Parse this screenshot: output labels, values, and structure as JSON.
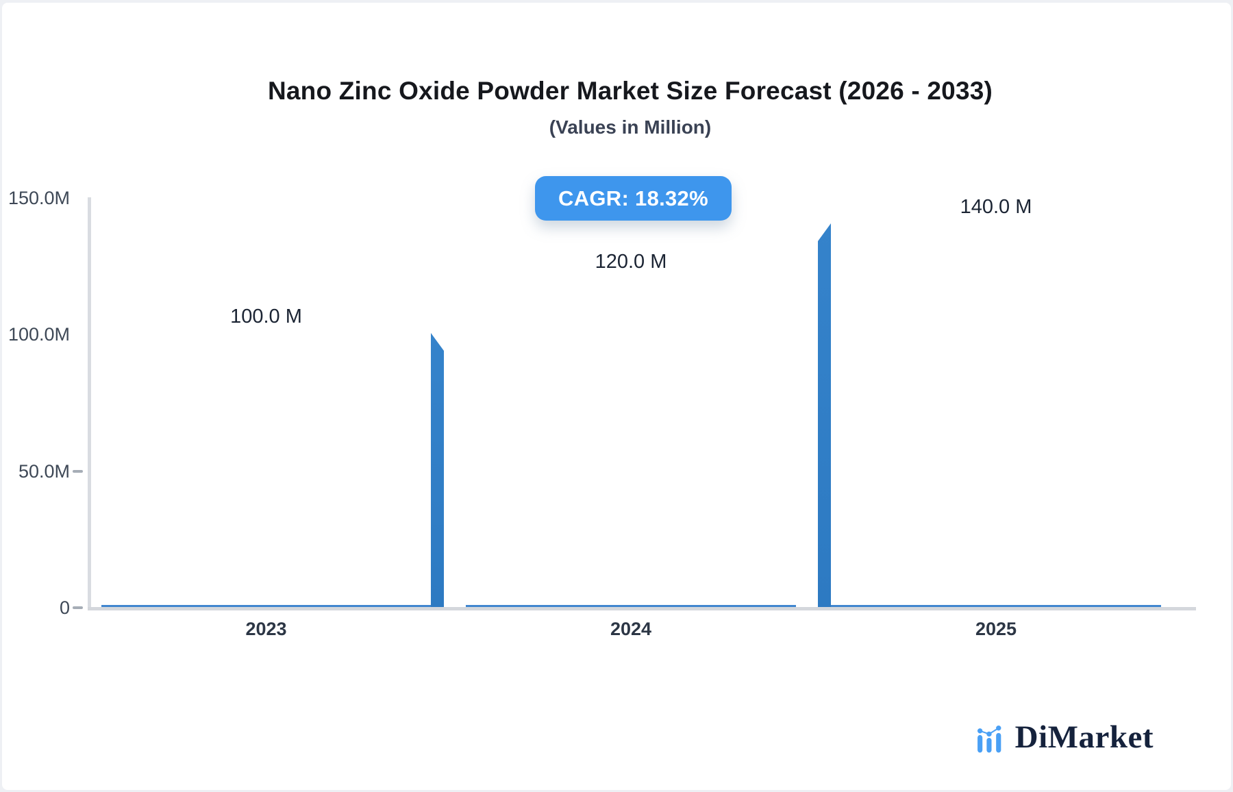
{
  "header": {
    "title": "Nano Zinc Oxide Powder Market Size Forecast (2026 - 2033)",
    "subtitle": "(Values in Million)"
  },
  "badge": {
    "label": "CAGR: 18.32%",
    "background": "#3e96ed",
    "text_color": "#ffffff"
  },
  "chart_data": {
    "type": "bar",
    "title": "Nano Zinc Oxide Powder Market Size Forecast (2026 - 2033)",
    "subtitle": "(Values in Million)",
    "categories": [
      "2023",
      "2024",
      "2025"
    ],
    "values": [
      100.0,
      120.0,
      140.0
    ],
    "value_labels": [
      "100.0 M",
      "120.0 M",
      "140.0 M"
    ],
    "unit": "Million",
    "y_ticks": [
      "150.0M",
      "100.0M",
      "50.0M",
      "0"
    ],
    "ylim": [
      0,
      150
    ],
    "grid": "off",
    "legend": "none",
    "bar_color_top": "#64aff3",
    "bar_color_bottom": "#3e96f0",
    "bar_side_color": "#2d7ac2",
    "axis_color": "#d9dce1"
  },
  "logo": {
    "text": "DiMarket",
    "icon": "bar-chart-logo-icon",
    "accent_color": "#4aa0f5",
    "text_color": "#15223c"
  }
}
